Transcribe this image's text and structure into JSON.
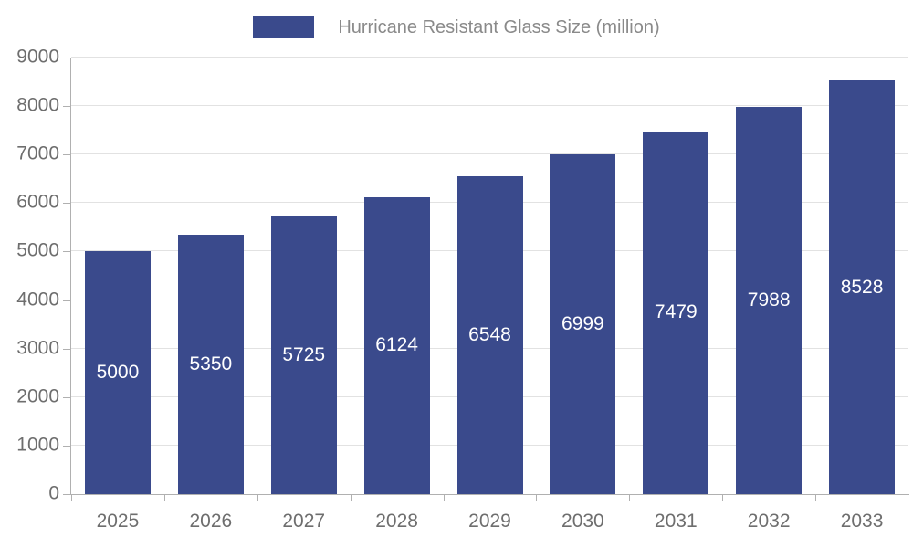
{
  "legend": {
    "label": "Hurricane Resistant Glass Size (million)"
  },
  "chart_data": {
    "type": "bar",
    "title": "Hurricane Resistant Glass Size (million)",
    "categories": [
      "2025",
      "2026",
      "2027",
      "2028",
      "2029",
      "2030",
      "2031",
      "2032",
      "2033"
    ],
    "series": [
      {
        "name": "Hurricane Resistant Glass Size (million)",
        "values": [
          5000,
          5350,
          5725,
          6124,
          6548,
          6999,
          7479,
          7988,
          8528
        ]
      }
    ],
    "value_labels": [
      "5000",
      "5350",
      "5725",
      "6124",
      "6548",
      "6999",
      "7479",
      "7988",
      "8528"
    ],
    "xlabel": "",
    "ylabel": "",
    "ylim": [
      0,
      9000
    ],
    "ytick_step": 1000,
    "ytick_labels": [
      "0",
      "1000",
      "2000",
      "3000",
      "4000",
      "5000",
      "6000",
      "7000",
      "8000",
      "9000"
    ],
    "grid": true,
    "legend_position": "top-center",
    "colors": {
      "bar": "#3A4A8C",
      "value_label": "#FFFFFF",
      "tick_text": "#6E6E6E",
      "legend_text": "#8A8A8A",
      "axis_line": "#B0B0B0",
      "gridline": "#E2E2E2",
      "background": "#FFFFFF"
    }
  }
}
